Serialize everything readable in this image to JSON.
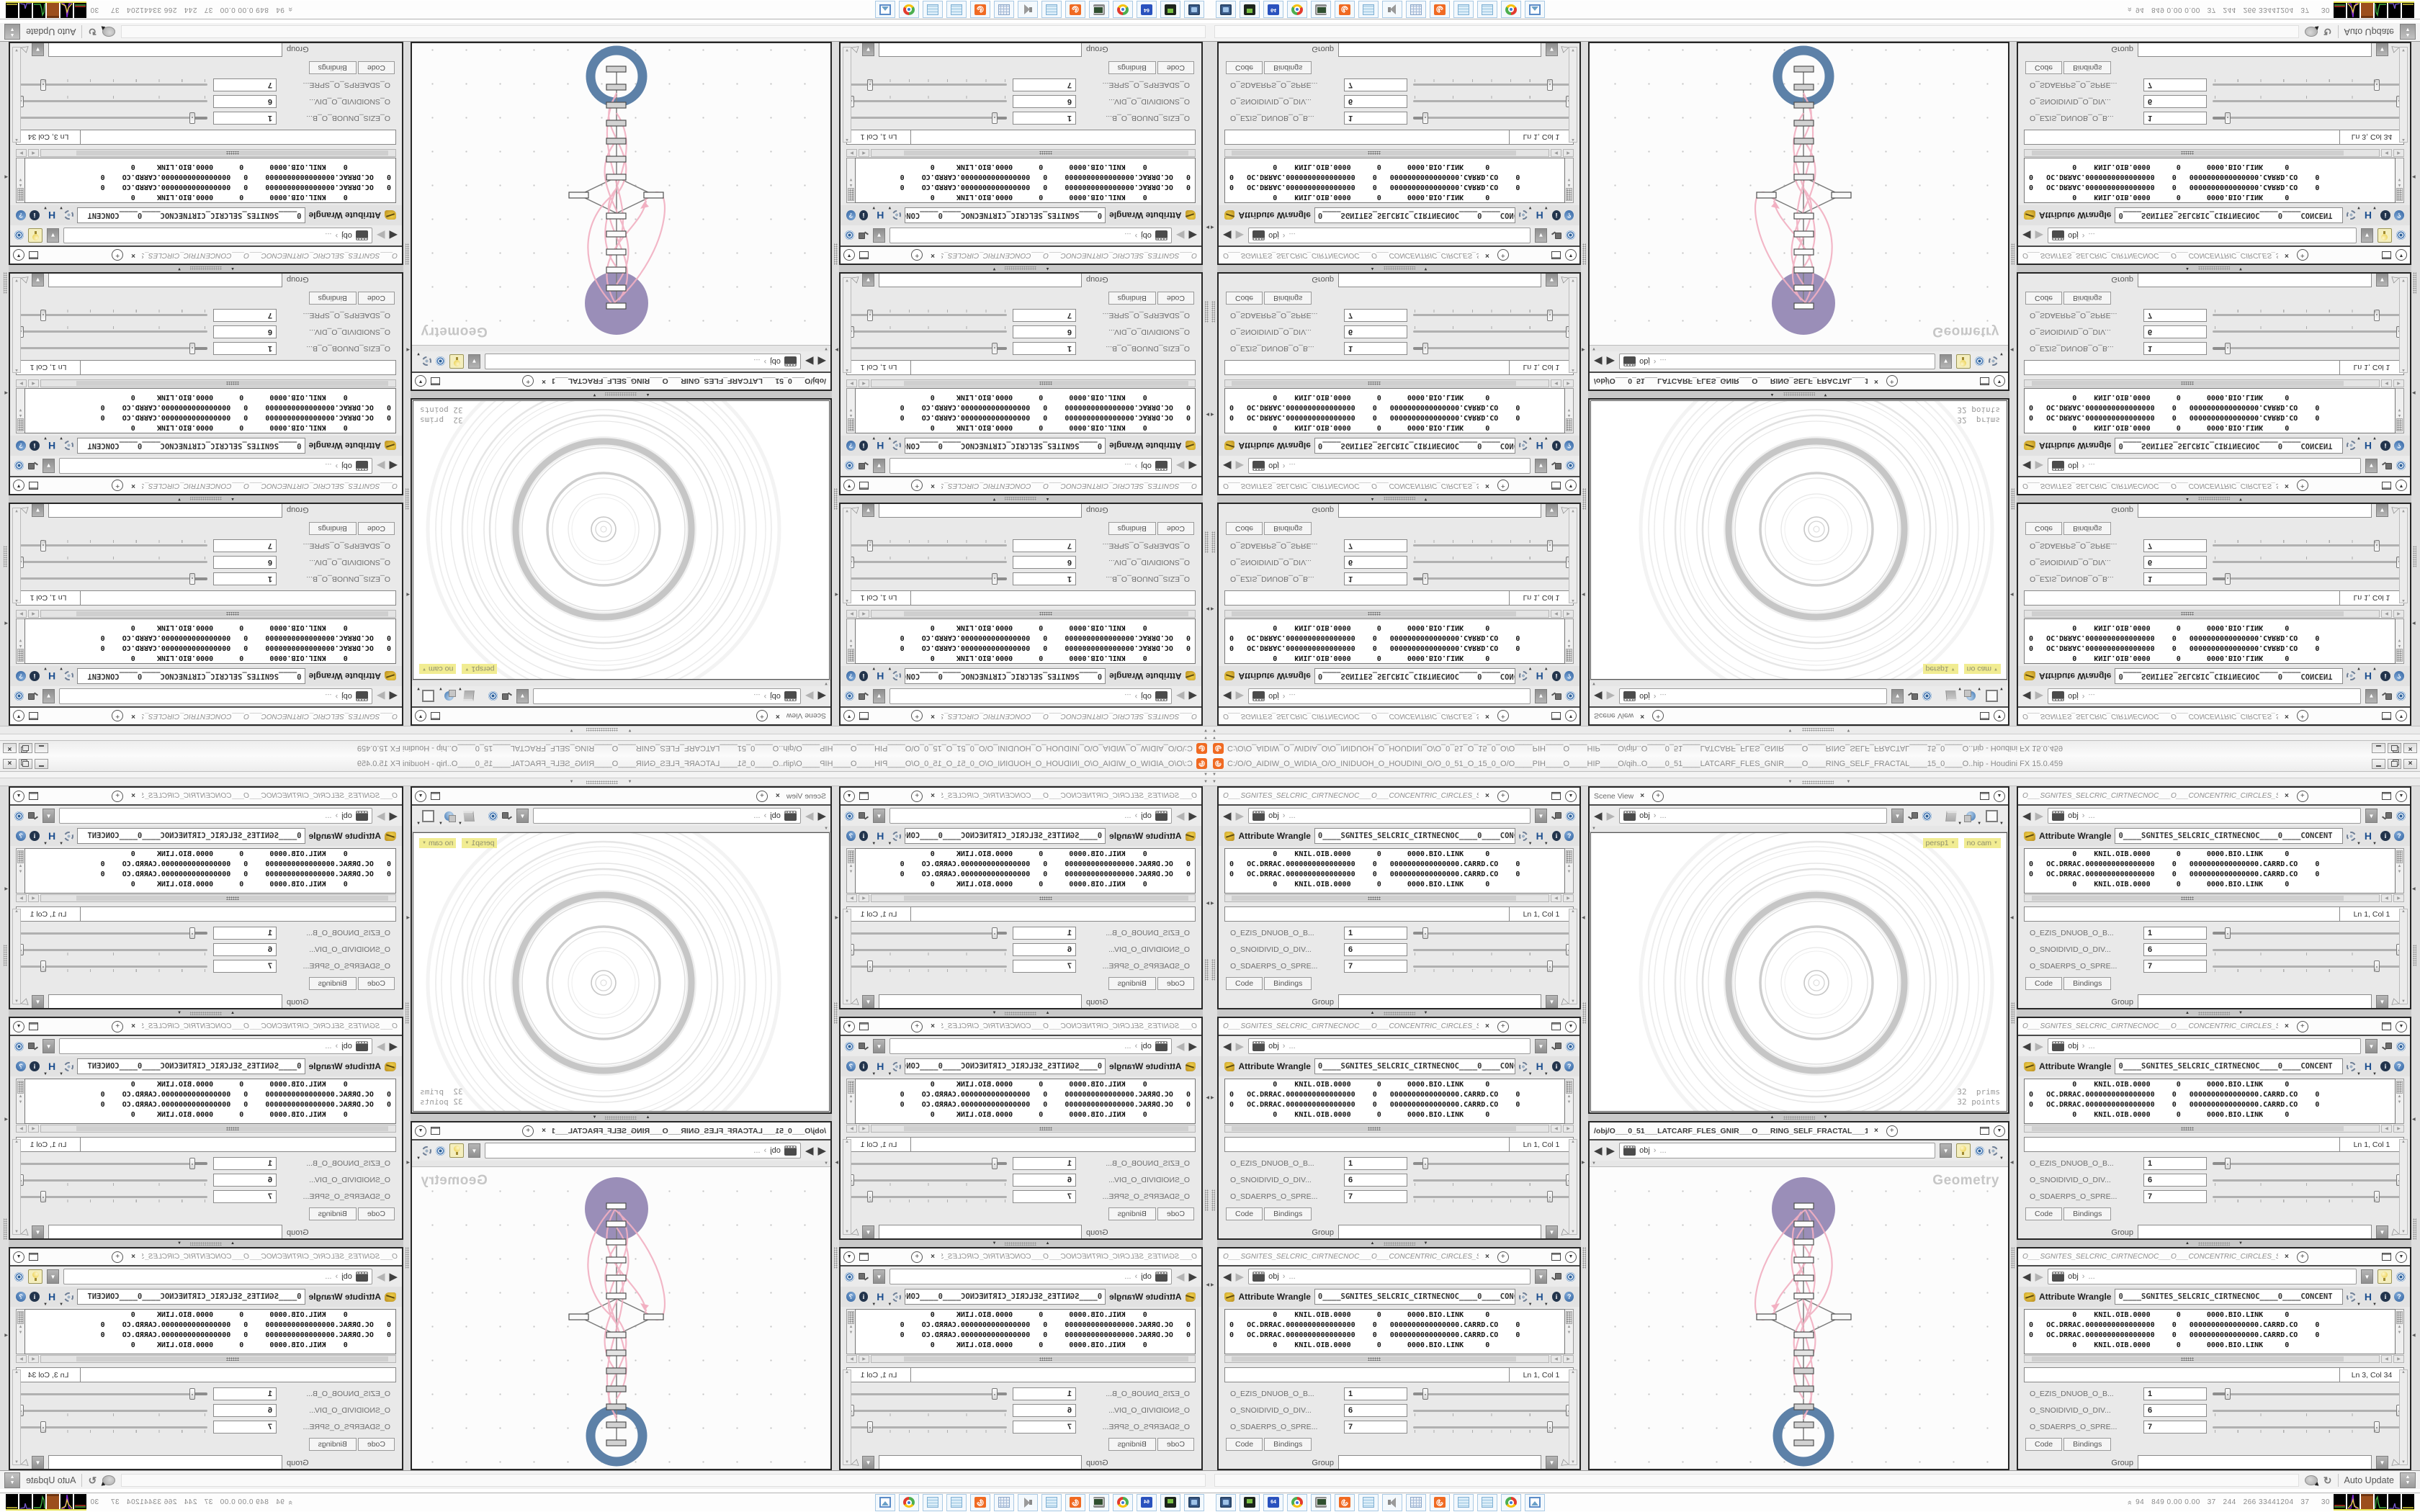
{
  "window": {
    "title": "C:/O/O_AIDIW_O_WIDIA_O/O_INIDUOH_O_HOUDINI_O/O_0_51_O_15_0_O/O____PIH____O____HIP____O/qih..O____0_51____LATCARF_FLES_GNIR____O____RING_SELF_FRACTAL____15_0____O..hip - Houdini FX 15.0.459",
    "buttons": {
      "minimize": "minimize",
      "restore": "restore",
      "close": "close"
    }
  },
  "param_pane": {
    "tab": "O___SGNITES_SELCRIC_CIRTNECNOC___O___CONCENTRIC_CIRCLES_SETINGS___O",
    "nav": {
      "context": "obj",
      "crumb": "›",
      "ellipsis": "..."
    },
    "node_type_label": "Attribute Wrangle",
    "node_name": "0____SGNITES_SELCRIC_CIRTNECNOC____0____CONCENT",
    "code_lines": [
      "           0    KNIL.OIB.0000      0      0000.BIO.LINK     0",
      " 0   OC.DRRAC.0000000000000000    0   0000000000000000.CARRD.CO    0",
      " 0   OC.DRRAC.0000000000000000    0   0000000000000000.CARRD.CO    0",
      "           0    KNIL.OIB.0000      0      0000.BIO.LINK     0"
    ],
    "params": [
      {
        "label": "O_EZIS_DNUOB_O_B...",
        "value": "1",
        "slider_pos": 0.08,
        "ticks": 0
      },
      {
        "label": "O_SNOIDIVID_O_DIV...",
        "value": "6",
        "slider_pos": 0.995,
        "ticks": 3
      },
      {
        "label": "O_SDAERPS_O_SPRE...",
        "value": "7",
        "slider_pos": 0.875,
        "ticks": 7
      }
    ],
    "editor_tabs": [
      "Code",
      "Bindings"
    ],
    "group_label": "Group"
  },
  "param_panes": [
    {
      "cursor_pos": "Ln 1, Col 1",
      "variant": "pin"
    },
    {
      "cursor_pos": "Ln 1, Col 1",
      "variant": "pin"
    },
    {
      "cursor_pos": "Ln 1, Col 1",
      "variant": "pin"
    },
    {
      "cursor_pos": "Ln 1, Col 1",
      "variant": "pin"
    },
    {
      "cursor_pos": "Ln 1, Col 1",
      "variant": "pin"
    },
    {
      "cursor_pos": "Ln 3, Col 34",
      "variant": "lamp"
    }
  ],
  "scene_view": {
    "tab": "Scene View",
    "camera_menu": "persp1",
    "camera_link": "no cam",
    "stats_prims": "32  prims",
    "stats_points": "32 points"
  },
  "network": {
    "tab": "/obj/O___0_51___LATCARF_FLES_GNIR___O___RING_SELF_FRACTAL___15_0_...",
    "watermark": "Geometry"
  },
  "status_bar": {
    "auto_update": "Auto Update"
  },
  "taskbar": {
    "icons": [
      "screen-recorder",
      "mobile-device",
      "floppy-64",
      "chrome",
      "screenshot-tool",
      "houdini",
      "notepad",
      "speaker",
      "calculator",
      "houdini",
      "notepad",
      "notepad",
      "chrome",
      "image-viewer"
    ],
    "floppy_label": "64",
    "perf_numbers": "94   849 0.00 0.00   37   244   266 33441204   37     30"
  }
}
